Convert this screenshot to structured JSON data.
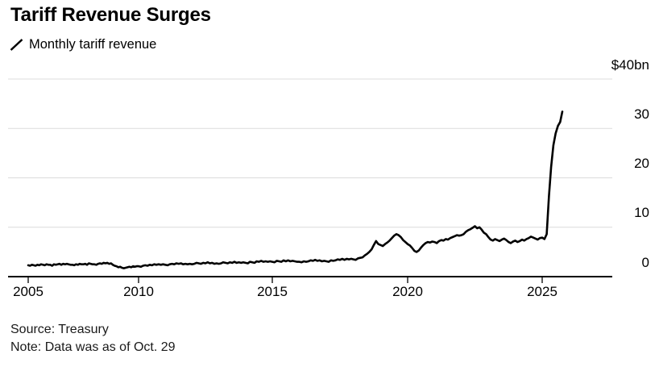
{
  "chart": {
    "title": "Tariff Revenue Surges",
    "legend": {
      "label": "Monthly tariff revenue"
    },
    "y_axis": {
      "unit_label": "$40bn",
      "tick_labels": [
        "30",
        "20",
        "10",
        "0"
      ]
    },
    "x_axis": {
      "ticks": [
        "2005",
        "2010",
        "2015",
        "2020",
        "2025"
      ]
    },
    "source": "Source: Treasury",
    "note": "Note: Data was as of Oct. 29"
  },
  "colors": {
    "line": "#000000",
    "grid": "#dcdcdc",
    "axis": "#000000",
    "background": "#ffffff"
  },
  "chart_data": {
    "type": "line",
    "title": "Tariff Revenue Surges",
    "unit": "$bn",
    "frequency": "monthly",
    "start": "2005-01",
    "end": "2025-10",
    "ylim": [
      0,
      40
    ],
    "y_gridlines": [
      10,
      20,
      30,
      40
    ],
    "x_ticks": [
      2005,
      2010,
      2015,
      2020,
      2025
    ],
    "grid": true,
    "legend_position": "top-left",
    "series": [
      {
        "name": "Monthly tariff revenue",
        "values": [
          2.3,
          2.2,
          2.4,
          2.3,
          2.2,
          2.4,
          2.3,
          2.5,
          2.4,
          2.3,
          2.5,
          2.4,
          2.4,
          2.2,
          2.5,
          2.4,
          2.5,
          2.6,
          2.4,
          2.6,
          2.5,
          2.6,
          2.5,
          2.4,
          2.4,
          2.3,
          2.5,
          2.4,
          2.6,
          2.5,
          2.5,
          2.6,
          2.4,
          2.7,
          2.6,
          2.5,
          2.5,
          2.4,
          2.6,
          2.7,
          2.6,
          2.8,
          2.7,
          2.8,
          2.6,
          2.7,
          2.4,
          2.2,
          2.1,
          1.9,
          2.0,
          1.8,
          1.7,
          1.8,
          1.9,
          2.0,
          1.9,
          2.1,
          2.0,
          2.1,
          2.1,
          2.0,
          2.2,
          2.3,
          2.2,
          2.4,
          2.3,
          2.5,
          2.4,
          2.5,
          2.4,
          2.5,
          2.4,
          2.3,
          2.5,
          2.6,
          2.5,
          2.7,
          2.6,
          2.7,
          2.5,
          2.6,
          2.5,
          2.6,
          2.5,
          2.6,
          2.8,
          2.7,
          2.6,
          2.8,
          2.7,
          2.9,
          2.7,
          2.8,
          2.6,
          2.7,
          2.6,
          2.7,
          2.9,
          2.8,
          2.7,
          2.9,
          2.8,
          3.0,
          2.8,
          2.9,
          2.8,
          2.9,
          2.8,
          2.7,
          3.0,
          2.9,
          2.8,
          3.1,
          3.0,
          3.2,
          3.0,
          3.1,
          3.0,
          3.1,
          3.0,
          2.9,
          3.2,
          3.1,
          3.0,
          3.3,
          3.1,
          3.3,
          3.1,
          3.2,
          3.1,
          3.0,
          3.0,
          2.9,
          3.1,
          3.0,
          3.1,
          3.3,
          3.2,
          3.4,
          3.2,
          3.3,
          3.1,
          3.2,
          3.1,
          3.0,
          3.3,
          3.2,
          3.3,
          3.5,
          3.4,
          3.6,
          3.4,
          3.6,
          3.5,
          3.6,
          3.5,
          3.4,
          3.7,
          3.8,
          3.9,
          4.3,
          4.6,
          5.0,
          5.5,
          6.4,
          7.2,
          6.6,
          6.4,
          6.2,
          6.6,
          6.9,
          7.3,
          7.8,
          8.3,
          8.6,
          8.4,
          8.0,
          7.4,
          7.0,
          6.6,
          6.3,
          5.8,
          5.2,
          5.0,
          5.3,
          5.9,
          6.4,
          6.8,
          7.0,
          6.9,
          7.1,
          7.0,
          6.8,
          7.2,
          7.4,
          7.3,
          7.6,
          7.5,
          7.8,
          8.0,
          8.2,
          8.4,
          8.3,
          8.4,
          8.6,
          9.1,
          9.4,
          9.6,
          9.9,
          10.2,
          9.8,
          10.0,
          9.5,
          8.9,
          8.6,
          8.0,
          7.5,
          7.3,
          7.6,
          7.4,
          7.2,
          7.5,
          7.7,
          7.4,
          7.0,
          6.8,
          7.1,
          7.3,
          7.0,
          7.2,
          7.5,
          7.3,
          7.6,
          7.8,
          8.1,
          7.9,
          7.7,
          7.5,
          7.8,
          7.9,
          7.6,
          8.6,
          16.3,
          22.2,
          26.6,
          29.0,
          30.5,
          31.3,
          33.4
        ]
      }
    ]
  }
}
